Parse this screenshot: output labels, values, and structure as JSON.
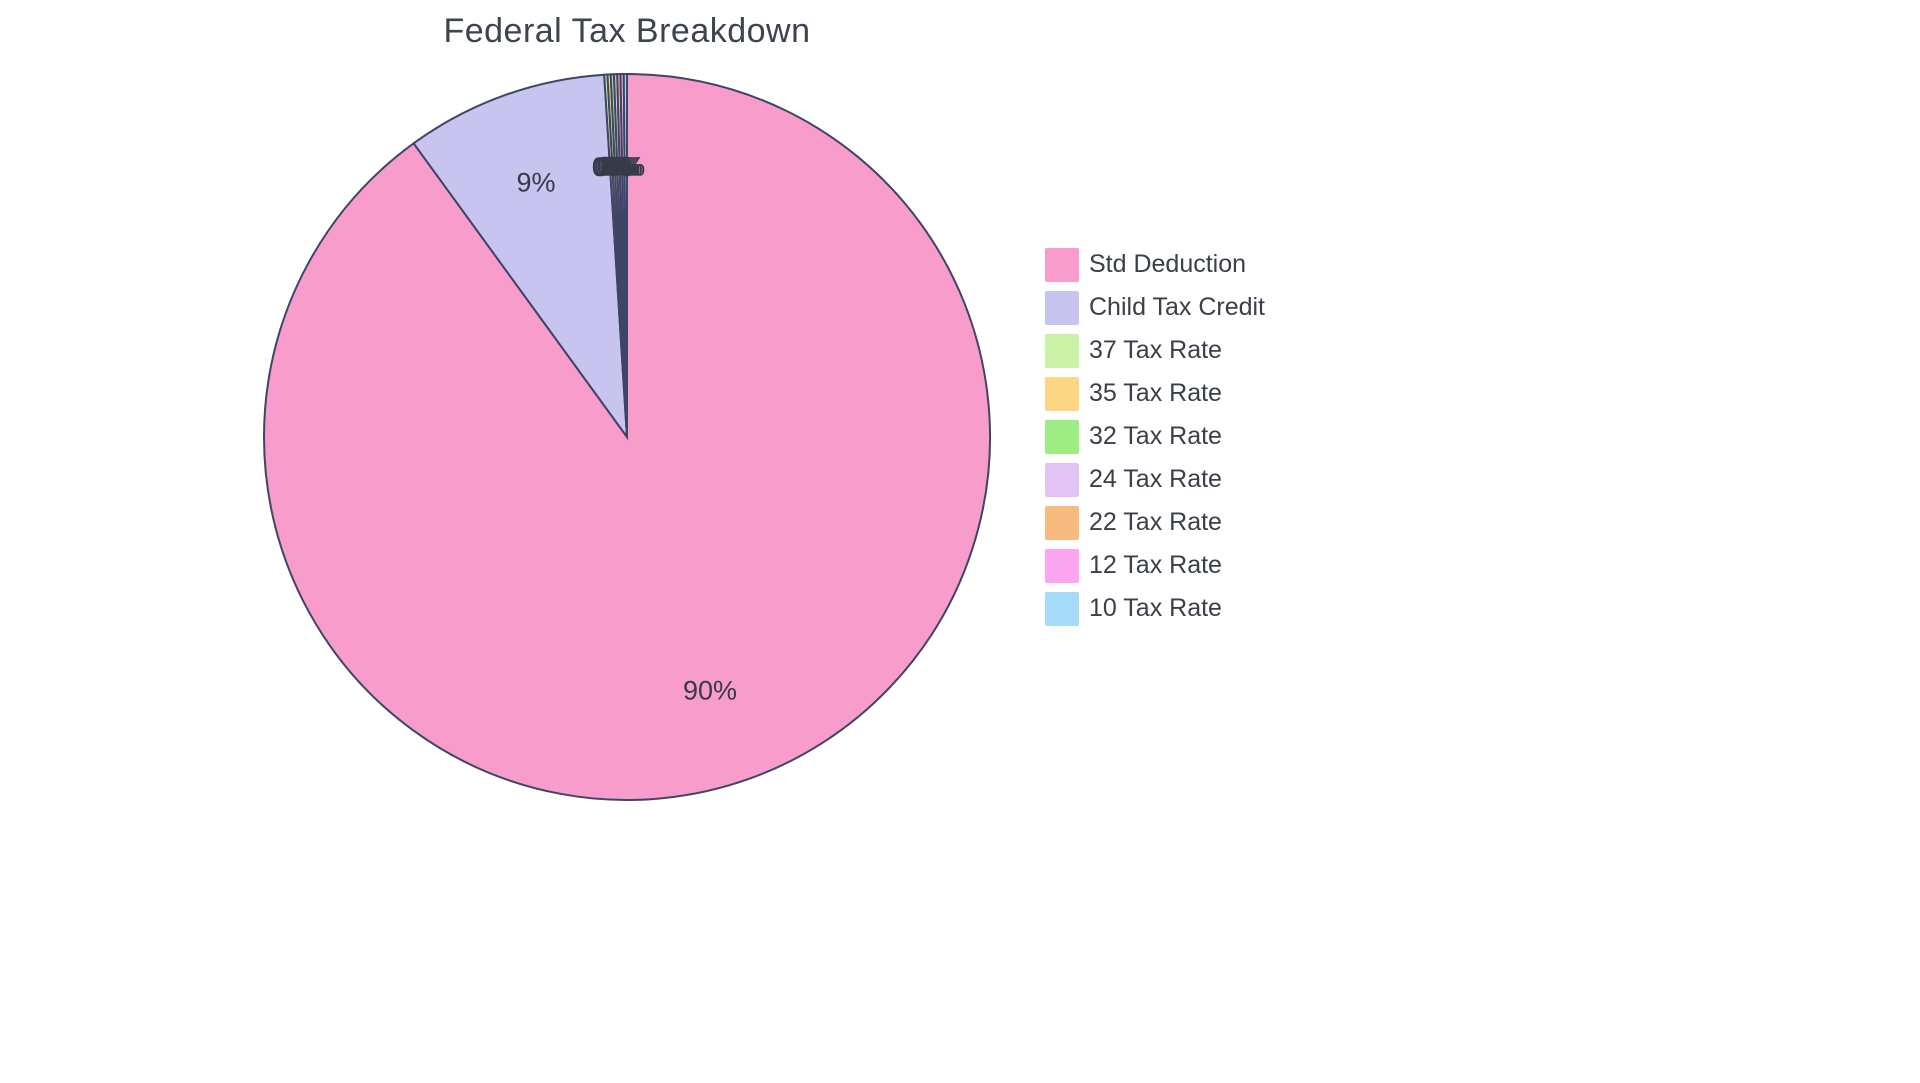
{
  "chart_data": {
    "type": "pie",
    "title": "Federal Tax Breakdown",
    "legend_position": "right",
    "direction": "clockwise",
    "rotation_deg": 0,
    "labels": [
      "Std Deduction",
      "Child Tax Credit",
      "37 Tax Rate",
      "35 Tax Rate",
      "32 Tax Rate",
      "24 Tax Rate",
      "22 Tax Rate",
      "12 Tax Rate",
      "10 Tax Rate"
    ],
    "values": [
      90,
      9,
      0.143,
      0.143,
      0.143,
      0.143,
      0.143,
      0.143,
      0.142
    ],
    "percent_labels": [
      "90%",
      "9%",
      "0%",
      "0%",
      "0%",
      "0%",
      "0%",
      "0%",
      "0%"
    ],
    "colors": [
      "#F89CCC",
      "#C8C4F0",
      "#CBF2A6",
      "#FBD786",
      "#9DED84",
      "#E2C3F6",
      "#F8BB7F",
      "#FBA6EE",
      "#A6DBF7"
    ],
    "outline_color": "#3F4566",
    "label_color": "#353B48",
    "title_color": "#3D4350"
  }
}
